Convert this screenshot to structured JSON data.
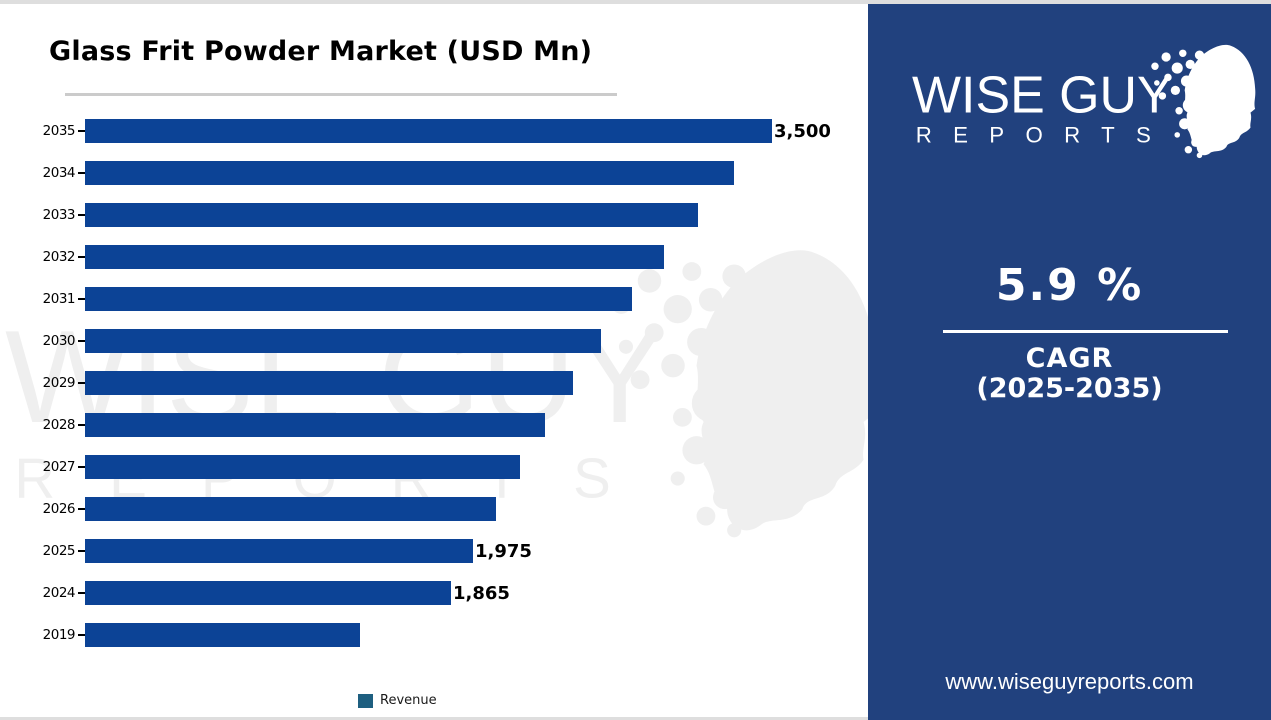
{
  "title": "Glass Frit Powder Market (USD Mn)",
  "brand": {
    "line1": "WISE GUY",
    "line2": "REPORTS",
    "url": "www.wiseguyreports.com",
    "panel_color": "#21417e"
  },
  "stats": {
    "cagr_value": "5.9 %",
    "cagr_label": "CAGR",
    "cagr_period": "(2025-2035)"
  },
  "legend": {
    "label": "Revenue",
    "swatch_color": "#1e5f80"
  },
  "chart_data": {
    "type": "bar",
    "orientation": "horizontal",
    "title": "Glass Frit Powder Market (USD Mn)",
    "unit": "USD Mn",
    "categories": [
      "2035",
      "2034",
      "2033",
      "2032",
      "2031",
      "2030",
      "2029",
      "2028",
      "2027",
      "2026",
      "2025",
      "2024",
      "2019"
    ],
    "values": [
      3500,
      3308,
      3124,
      2950,
      2786,
      2631,
      2484,
      2346,
      2215,
      2092,
      1975,
      1865,
      1400
    ],
    "data_labels": [
      "3,500",
      null,
      null,
      null,
      null,
      null,
      null,
      null,
      null,
      null,
      "1,975",
      "1,865",
      null
    ],
    "xlim": [
      0,
      3500
    ],
    "grid": false,
    "bar_color": "#0c4396",
    "legend_entries": [
      "Revenue"
    ],
    "legend_position": "bottom"
  }
}
